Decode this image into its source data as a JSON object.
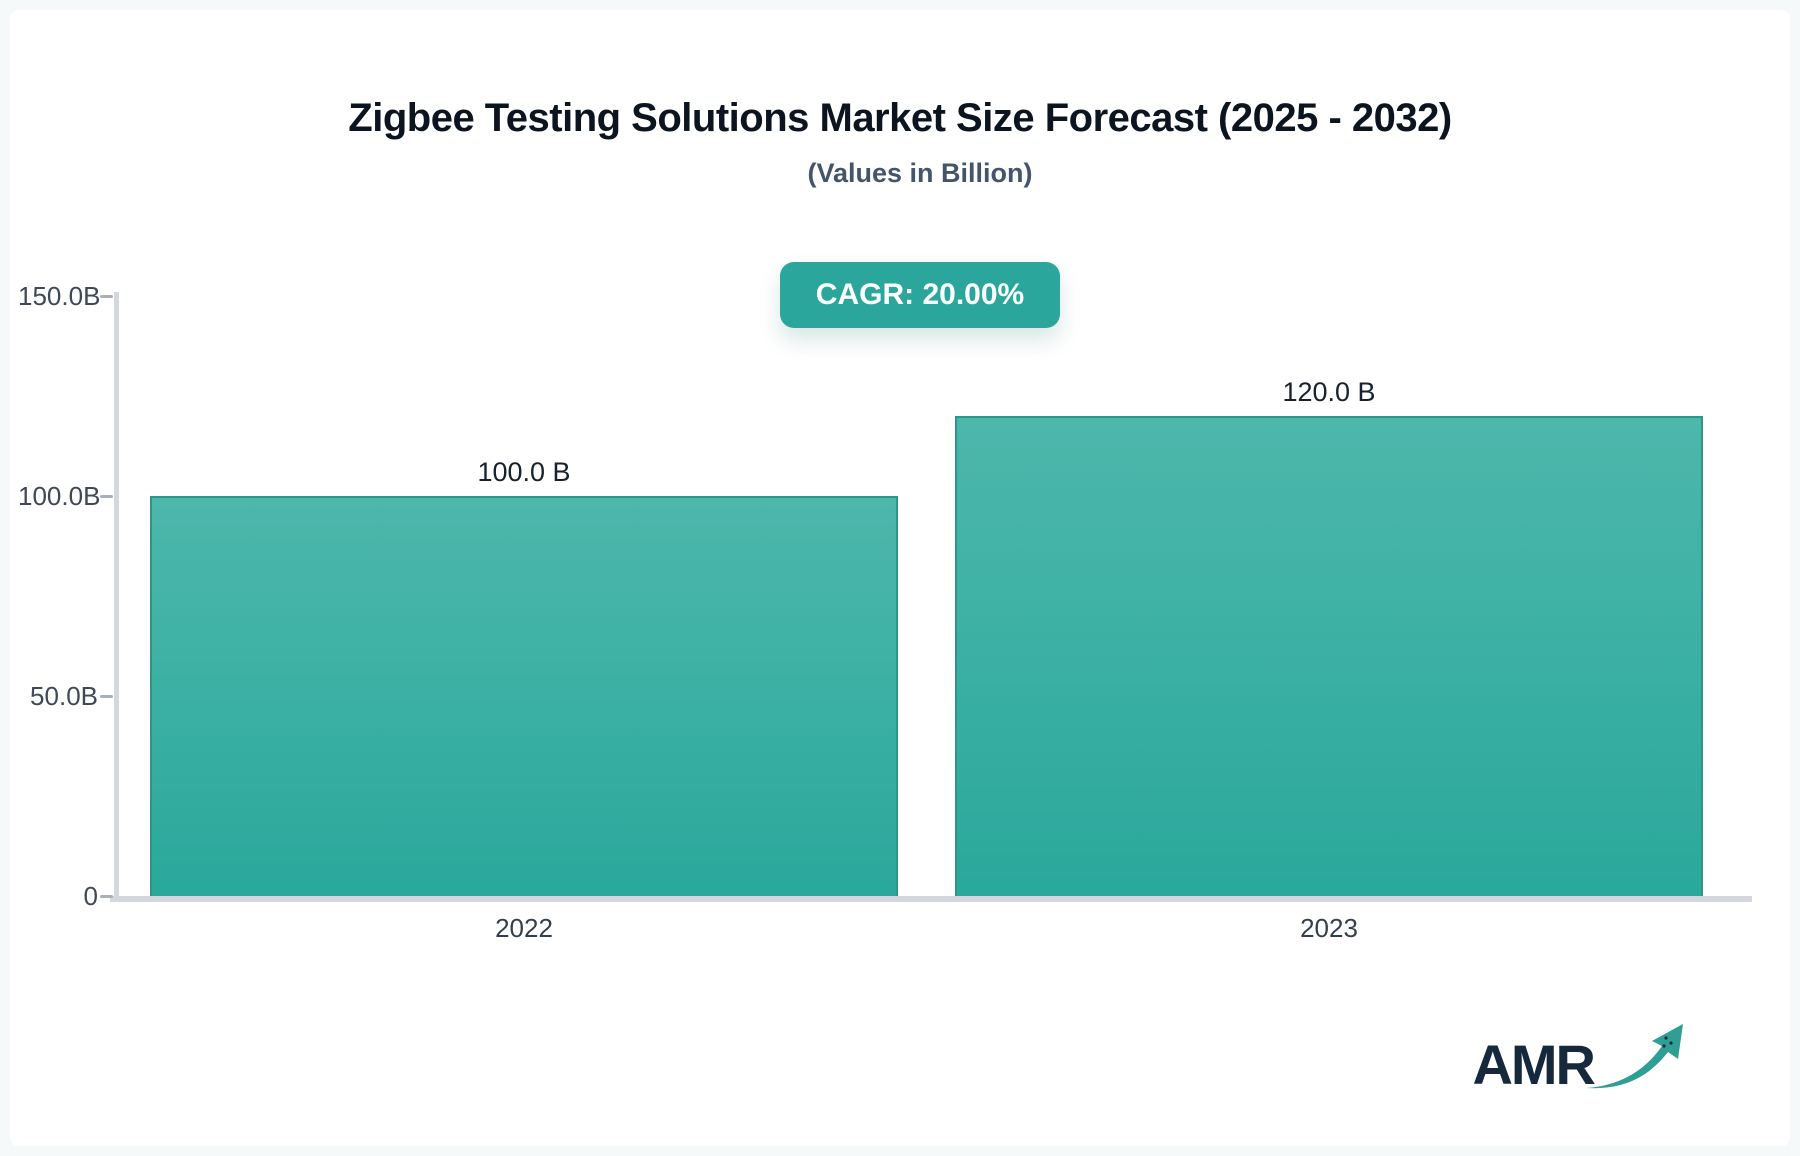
{
  "header": {
    "title": "Zigbee Testing Solutions Market Size Forecast (2025 - 2032)",
    "subtitle": "(Values in Billion)",
    "cagr_badge": "CAGR: 20.00%"
  },
  "chart_data": {
    "type": "bar",
    "title": "Zigbee Testing Solutions Market Size Forecast (2025 - 2032)",
    "subtitle": "(Values in Billion)",
    "categories": [
      "2022",
      "2023"
    ],
    "values": [
      100.0,
      120.0
    ],
    "value_labels": [
      "100.0 B",
      "120.0 B"
    ],
    "ylim": [
      0,
      150
    ],
    "ytick_values": [
      150,
      100,
      50,
      0
    ],
    "ytick_labels": [
      "150.0B",
      "100.0B",
      "50.0B",
      "0"
    ],
    "grid": "off",
    "legend": "none",
    "colors": {
      "bar_gradient_top": "#4DB7AC",
      "bar_gradient_bottom": "#2AA89B",
      "bar_border": "#2E958B",
      "axis_line": "#d4d7dd",
      "badge_background": "#2BA69D",
      "badge_text": "#ffffff",
      "title_text": "#0c1420",
      "subtitle_text": "#44546a"
    }
  },
  "logo": {
    "text": "AMR",
    "arrow_icon_color": "#2f9e94"
  }
}
